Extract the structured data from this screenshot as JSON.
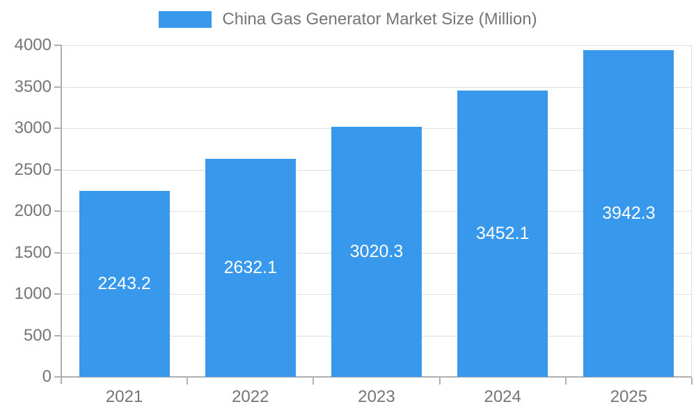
{
  "chart_data": {
    "type": "bar",
    "title": "China Gas Generator Market Size (Million)",
    "categories": [
      "2021",
      "2022",
      "2023",
      "2024",
      "2025"
    ],
    "values": [
      2243.2,
      2632.1,
      3020.3,
      3452.1,
      3942.3
    ],
    "value_labels": [
      "2243.2",
      "2632.1",
      "3020.3",
      "3452.1",
      "3942.3"
    ],
    "xlabel": "",
    "ylabel": "",
    "ylim": [
      0,
      4000
    ],
    "y_ticks": [
      0,
      500,
      1000,
      1500,
      2000,
      2500,
      3000,
      3500,
      4000
    ],
    "grid": true,
    "legend_position": "top",
    "value_label_position": "center",
    "colors": {
      "bar": "#3899EC",
      "value_text": "#FFFFFF",
      "axis_text": "#757575",
      "axis_line": "#B0B0B0",
      "gridline": "#E0E0E0",
      "background": "#FFFFFF"
    }
  }
}
